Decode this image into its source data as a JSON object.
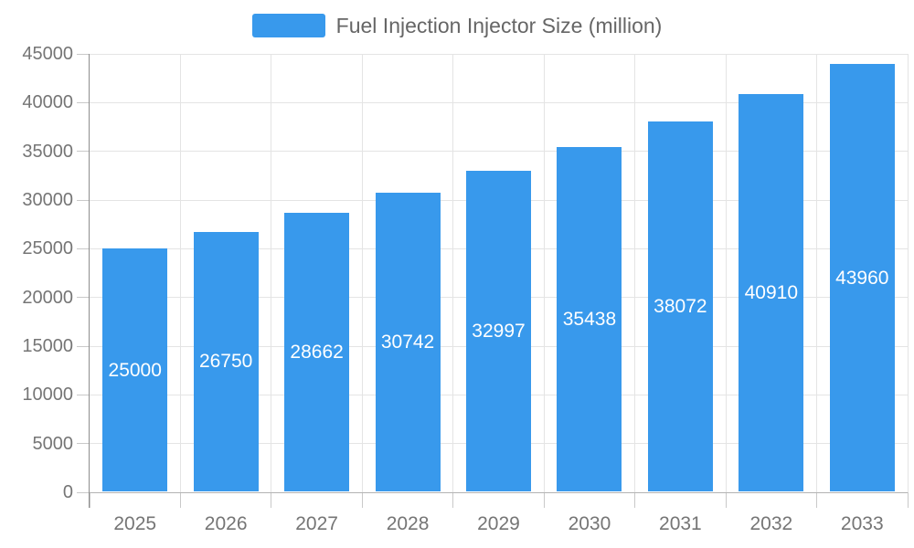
{
  "legend": {
    "label": "Fuel Injection Injector Size (million)"
  },
  "colors": {
    "bar": "#3899EC",
    "grid": "#e4e4e4",
    "y_axis_line": "#8e8e8e",
    "x_axis_line": "#b3b3b3",
    "tick": "#c9c9c9",
    "axis_label_text": "#757575",
    "legend_text": "#666666",
    "value_label_text": "#ffffff",
    "background": "#ffffff"
  },
  "chart_data": {
    "type": "bar",
    "title": "Fuel Injection Injector Size (million)",
    "categories": [
      "2025",
      "2026",
      "2027",
      "2028",
      "2029",
      "2030",
      "2031",
      "2032",
      "2033"
    ],
    "series": [
      {
        "name": "Fuel Injection Injector Size (million)",
        "values": [
          25000,
          26750,
          28662,
          30742,
          32997,
          35438,
          38072,
          40910,
          43960
        ]
      }
    ],
    "yticks": [
      0,
      5000,
      10000,
      15000,
      20000,
      25000,
      30000,
      35000,
      40000,
      45000
    ],
    "ylim": [
      0,
      45000
    ],
    "xlabel": "",
    "ylabel": "",
    "grid": true,
    "legend_position": "top",
    "value_labels_position": "inside-center"
  }
}
